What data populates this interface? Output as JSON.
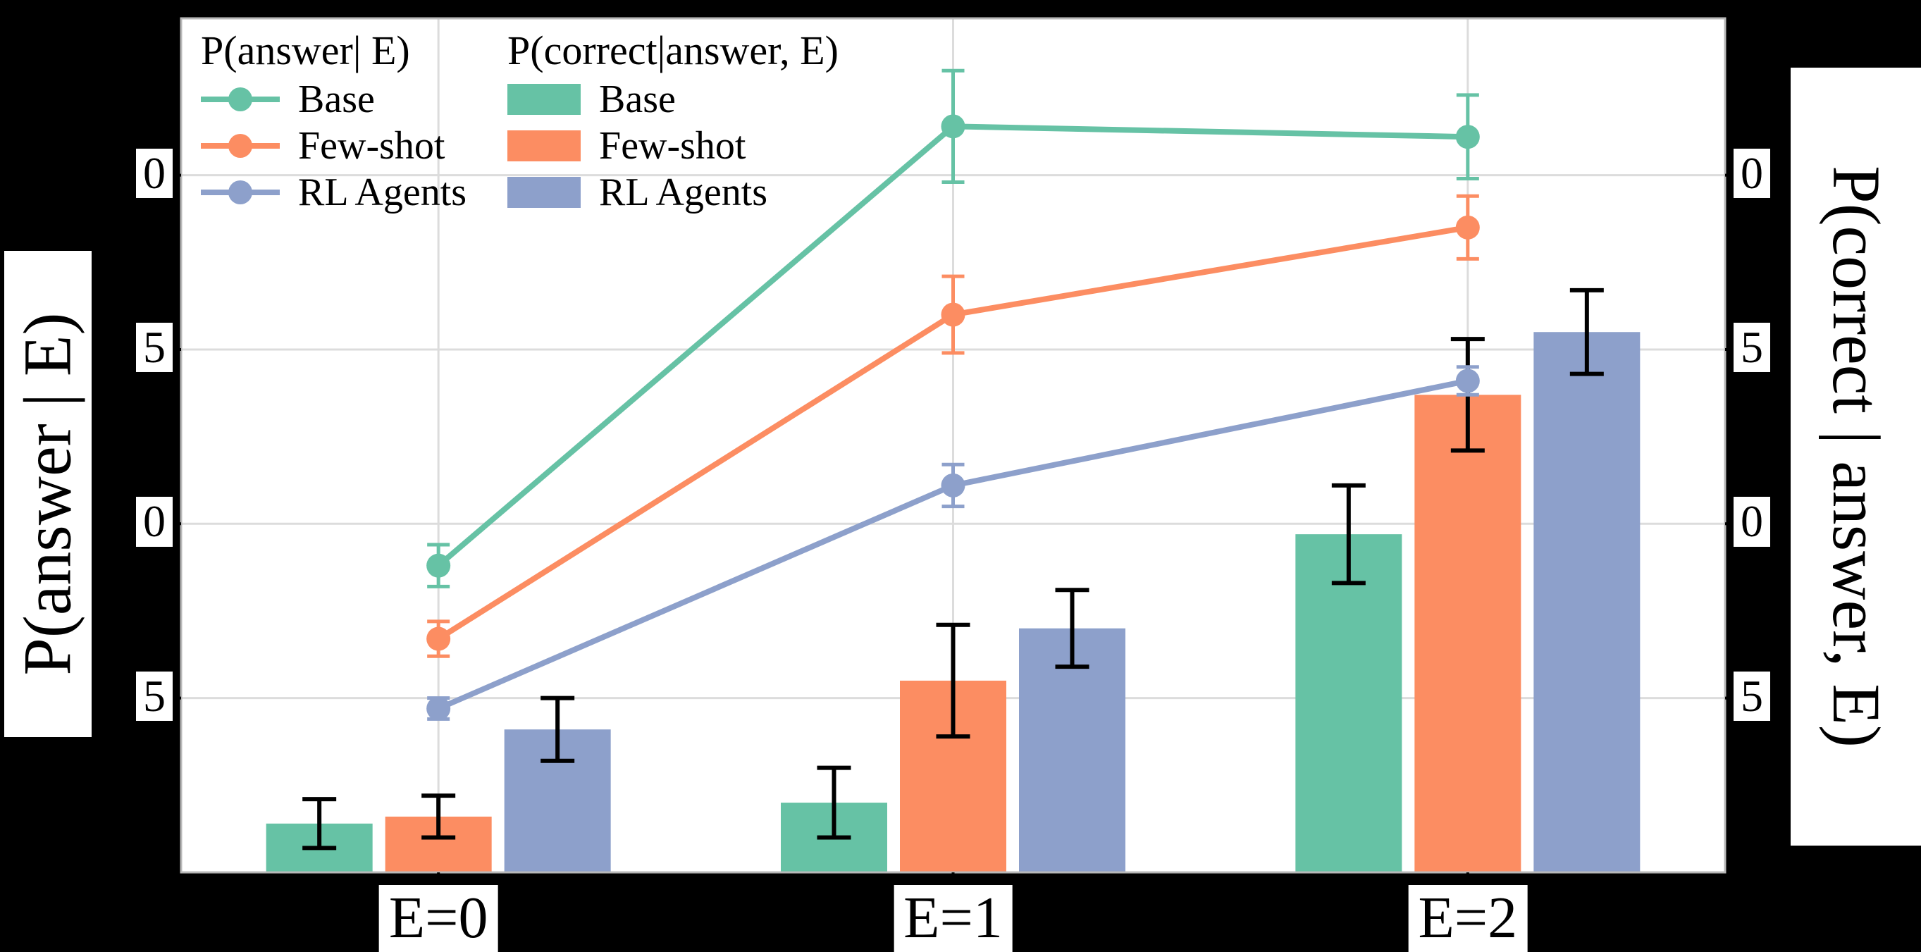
{
  "figure": {
    "background_color": "#000000",
    "plot_background_color": "#ffffff",
    "grid_color": "#dcdcdc",
    "border_color": "#b8b8b8",
    "bar_error_color": "#000000"
  },
  "axes": {
    "left": {
      "label": "P(answer | E)",
      "tick_values": [
        0.2,
        0.15,
        0.1,
        0.05
      ],
      "tick_display": [
        "0",
        "5",
        "0",
        "5"
      ]
    },
    "right": {
      "label": "P(correct | answer, E)",
      "tick_values": [
        0.2,
        0.15,
        0.1,
        0.05
      ],
      "tick_display": [
        "0",
        "5",
        "0",
        "5"
      ]
    },
    "x": {
      "tick_labels": [
        "E=0",
        "E=1",
        "E=2"
      ]
    }
  },
  "legend": {
    "line_group_title": "P(answer| E)",
    "bar_group_title": "P(correct|answer, E)",
    "entries": [
      "Base",
      "Few-shot",
      "RL Agents"
    ]
  },
  "chart_data": {
    "type": "line+bar",
    "categories": [
      "E=0",
      "E=1",
      "E=2"
    ],
    "left_axis": {
      "label": "P(answer | E)",
      "ticks": [
        0.05,
        0.1,
        0.15,
        0.2
      ],
      "ylim": [
        0,
        0.245
      ]
    },
    "right_axis": {
      "label": "P(correct | answer, E)",
      "ticks": [
        0.05,
        0.1,
        0.15,
        0.2
      ],
      "ylim": [
        0,
        0.245
      ]
    },
    "grid": true,
    "legend_position": "upper-left",
    "line_series": [
      {
        "name": "Base",
        "color": "#66c2a5",
        "values": [
          0.088,
          0.214,
          0.211
        ],
        "errors": [
          0.006,
          0.016,
          0.012
        ]
      },
      {
        "name": "Few-shot",
        "color": "#fc8d62",
        "values": [
          0.067,
          0.16,
          0.185
        ],
        "errors": [
          0.005,
          0.011,
          0.009
        ]
      },
      {
        "name": "RL Agents",
        "color": "#8da0cb",
        "values": [
          0.047,
          0.111,
          0.141
        ],
        "errors": [
          0.003,
          0.006,
          0.004
        ]
      }
    ],
    "bar_series": [
      {
        "name": "Base",
        "color": "#66c2a5",
        "values": [
          0.014,
          0.02,
          0.097
        ],
        "errors": [
          0.007,
          0.01,
          0.014
        ]
      },
      {
        "name": "Few-shot",
        "color": "#fc8d62",
        "values": [
          0.016,
          0.055,
          0.137
        ],
        "errors": [
          0.006,
          0.016,
          0.016
        ]
      },
      {
        "name": "RL Agents",
        "color": "#8da0cb",
        "values": [
          0.041,
          0.07,
          0.155
        ],
        "errors": [
          0.009,
          0.011,
          0.012
        ]
      }
    ]
  }
}
